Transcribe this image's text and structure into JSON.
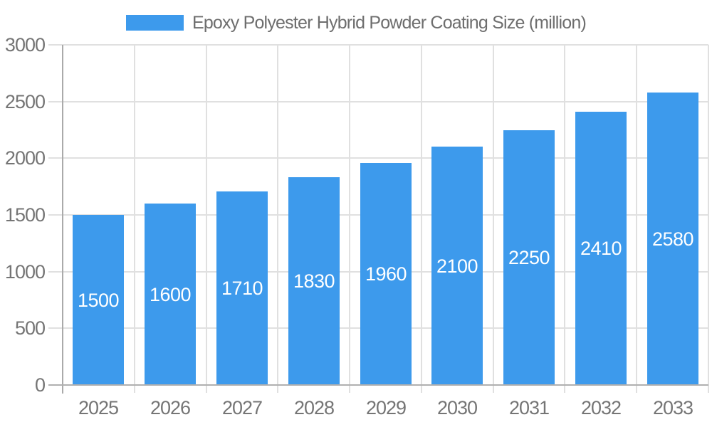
{
  "chart_data": {
    "type": "bar",
    "title": "Epoxy Polyester Hybrid Powder Coating Size (million)",
    "categories": [
      "2025",
      "2026",
      "2027",
      "2028",
      "2029",
      "2030",
      "2031",
      "2032",
      "2033"
    ],
    "values": [
      1500,
      1600,
      1710,
      1830,
      1960,
      2100,
      2250,
      2410,
      2580
    ],
    "series_name": "Epoxy Polyester Hybrid Powder Coating Size (million)",
    "xlabel": "",
    "ylabel": "",
    "ylim": [
      0,
      3000
    ],
    "yticks": [
      0,
      500,
      1000,
      1500,
      2000,
      2500,
      3000
    ],
    "grid": true,
    "legend_position": "top-center",
    "bar_label_position": "inside-center",
    "colors": {
      "bar": "#3D9AEC",
      "bar_label_text": "#FFFFFF",
      "grid_line": "#E0E0E0",
      "y_axis_line": "#AAAAAA",
      "x_axis_line": "#B0B0B0",
      "tick_text": "#757575",
      "title_text": "#6E6E6E",
      "background": "#FFFFFF"
    }
  }
}
